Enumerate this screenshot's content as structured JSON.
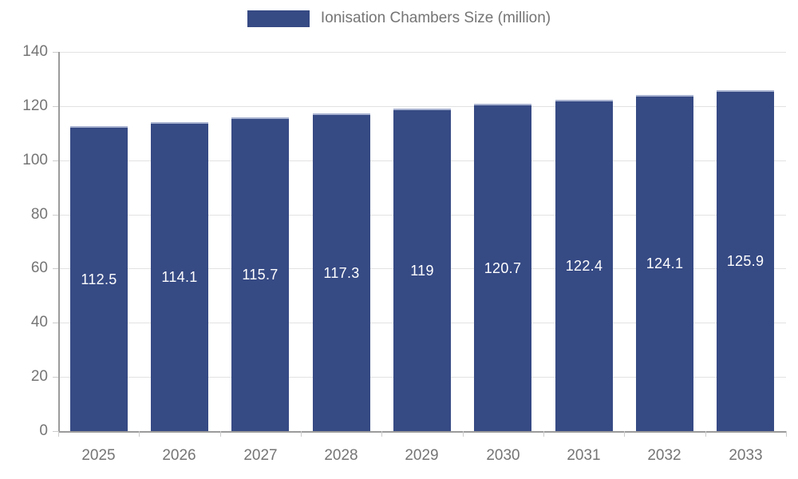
{
  "legend": {
    "label": "Ionisation Chambers Size (million)"
  },
  "chart_data": {
    "type": "bar",
    "title": "",
    "xlabel": "",
    "ylabel": "",
    "categories": [
      "2025",
      "2026",
      "2027",
      "2028",
      "2029",
      "2030",
      "2031",
      "2032",
      "2033"
    ],
    "series": [
      {
        "name": "Ionisation Chambers Size (million)",
        "values": [
          112.5,
          114.1,
          115.7,
          117.3,
          119,
          120.7,
          122.4,
          124.1,
          125.9
        ]
      }
    ],
    "value_labels": [
      "112.5",
      "114.1",
      "115.7",
      "117.3",
      "119",
      "120.7",
      "122.4",
      "124.1",
      "125.9"
    ],
    "ylim": [
      0,
      140
    ],
    "ytick_step": 20,
    "ytick_labels": [
      "0",
      "20",
      "40",
      "60",
      "80",
      "100",
      "120",
      "140"
    ],
    "grid": true,
    "legend_position": "top",
    "colors": {
      "bar_fill": "#364A84",
      "bar_edge": "#A9B3D1",
      "value_text": "#FFFFFF",
      "axis_text": "#757575",
      "gridline": "#E2E2E2",
      "axis_line": "#9B9B9B",
      "tick": "#CCCCCC",
      "background": "#FFFFFF"
    }
  }
}
